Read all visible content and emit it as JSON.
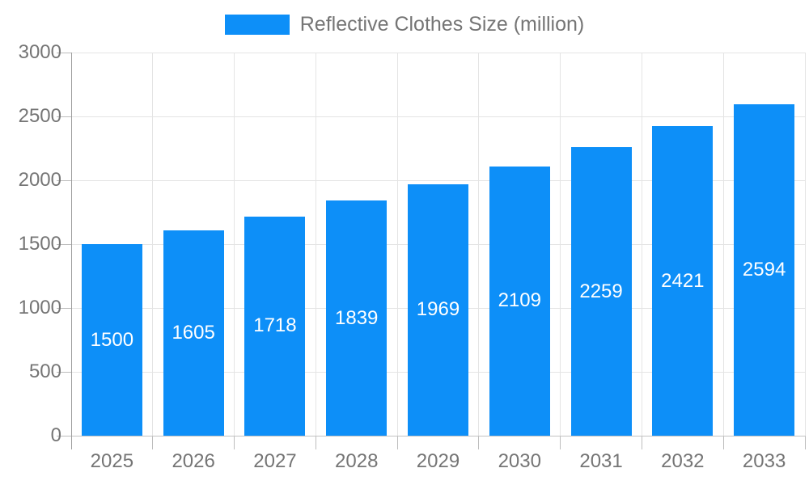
{
  "legend": {
    "label": "Reflective Clothes Size (million)"
  },
  "chart_data": {
    "type": "bar",
    "title": "Reflective Clothes Size (million)",
    "series_name": "Reflective Clothes Size (million)",
    "categories": [
      "2025",
      "2026",
      "2027",
      "2028",
      "2029",
      "2030",
      "2031",
      "2032",
      "2033"
    ],
    "values": [
      1500,
      1605,
      1718,
      1839,
      1969,
      2109,
      2259,
      2421,
      2594
    ],
    "value_labels": [
      "1500",
      "1605",
      "1718",
      "1839",
      "1969",
      "2109",
      "2259",
      "2421",
      "2594"
    ],
    "xlabel": "",
    "ylabel": "",
    "ylim": [
      0,
      3000
    ],
    "yticks": [
      0,
      500,
      1000,
      1500,
      2000,
      2500,
      3000
    ],
    "ytick_labels": [
      "0",
      "500",
      "1000",
      "1500",
      "2000",
      "2500",
      "3000"
    ],
    "grid": true,
    "legend_position": "top-center",
    "colors": {
      "bar": "#0d8ff8",
      "value_label": "#ffffff",
      "axis_text": "#757575",
      "gridline": "#e4e4e4",
      "tick": "#bdbdbd",
      "x_axis_line": "#c2c2c2",
      "y_axis_line": "#9e9e9e",
      "background": "#ffffff"
    }
  }
}
